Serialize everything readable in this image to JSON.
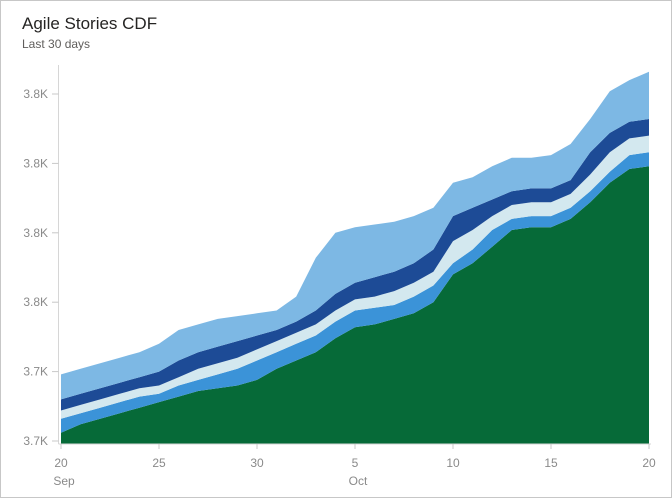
{
  "card": {
    "title": "Agile Stories CDF",
    "subtitle": "Last 30 days"
  },
  "colors": {
    "title": "#252423",
    "subtitle": "#605e5c",
    "axis_label": "#8a8a8a",
    "axis_line": "#d6d6d6",
    "tick_mark": "#c8c8c8",
    "card_border": "#c7c7c7",
    "background": "#ffffff"
  },
  "chart_data": {
    "type": "area",
    "stacked": true,
    "title": "Agile Stories CDF",
    "subtitle": "Last 30 days",
    "grid": false,
    "legend": false,
    "baseline": 3700,
    "ylim": [
      3700,
      3835
    ],
    "x": [
      "Sep 20",
      "Sep 21",
      "Sep 22",
      "Sep 23",
      "Sep 24",
      "Sep 25",
      "Sep 26",
      "Sep 27",
      "Sep 28",
      "Sep 29",
      "Sep 30",
      "Oct 1",
      "Oct 2",
      "Oct 3",
      "Oct 4",
      "Oct 5",
      "Oct 6",
      "Oct 7",
      "Oct 8",
      "Oct 9",
      "Oct 10",
      "Oct 11",
      "Oct 12",
      "Oct 13",
      "Oct 14",
      "Oct 15",
      "Oct 16",
      "Oct 17",
      "Oct 18",
      "Oct 19",
      "Oct 20"
    ],
    "series": [
      {
        "name": "green",
        "color": "#066a38",
        "absolute": true,
        "values": [
          3703,
          3706,
          3708,
          3710,
          3712,
          3714,
          3716,
          3718,
          3719,
          3720,
          3722,
          3726,
          3729,
          3732,
          3737,
          3741,
          3742,
          3744,
          3746,
          3750,
          3760,
          3764,
          3770,
          3776,
          3777,
          3777,
          3780,
          3786,
          3793,
          3798,
          3799
        ]
      },
      {
        "name": "medium-blue",
        "color": "#3b93d8",
        "absolute": false,
        "values": [
          5,
          4,
          4,
          4,
          4,
          3,
          4,
          4,
          5,
          6,
          7,
          6,
          6,
          6,
          6,
          6,
          6,
          5,
          6,
          6,
          4,
          5,
          6,
          4,
          4,
          4,
          4,
          4,
          4,
          5,
          5
        ]
      },
      {
        "name": "pale-blue",
        "color": "#d3e8ef",
        "absolute": false,
        "values": [
          3,
          3,
          3,
          3,
          3,
          3,
          3,
          4,
          4,
          4,
          4,
          4,
          4,
          4,
          4,
          4,
          4,
          5,
          5,
          5,
          8,
          7,
          5,
          5,
          5,
          5,
          5,
          6,
          7,
          6,
          6
        ]
      },
      {
        "name": "navy",
        "color": "#1d4b96",
        "absolute": false,
        "values": [
          4,
          4,
          4,
          4,
          4,
          5,
          6,
          6,
          6,
          6,
          5,
          4,
          4,
          5,
          6,
          6,
          7,
          7,
          7,
          8,
          9,
          8,
          6,
          5,
          5,
          5,
          5,
          8,
          7,
          6,
          6
        ]
      },
      {
        "name": "light-blue",
        "color": "#7db8e4",
        "absolute": false,
        "values": [
          9,
          9,
          9,
          9,
          9,
          10,
          11,
          10,
          10,
          9,
          8,
          7,
          9,
          19,
          22,
          20,
          19,
          18,
          17,
          15,
          12,
          11,
          12,
          12,
          11,
          12,
          13,
          12,
          15,
          15,
          17
        ]
      }
    ],
    "y_ticks": [
      {
        "value": 3700,
        "label": "3.7K"
      },
      {
        "value": 3725,
        "label": "3.7K"
      },
      {
        "value": 3750,
        "label": "3.8K"
      },
      {
        "value": 3775,
        "label": "3.8K"
      },
      {
        "value": 3800,
        "label": "3.8K"
      },
      {
        "value": 3825,
        "label": "3.8K"
      }
    ],
    "x_ticks": [
      {
        "day": 0,
        "label": "20",
        "month": "Sep"
      },
      {
        "day": 5,
        "label": "25"
      },
      {
        "day": 10,
        "label": "30"
      },
      {
        "day": 15,
        "label": "5",
        "month": "Oct"
      },
      {
        "day": 20,
        "label": "10"
      },
      {
        "day": 25,
        "label": "15"
      },
      {
        "day": 30,
        "label": "20"
      }
    ]
  }
}
